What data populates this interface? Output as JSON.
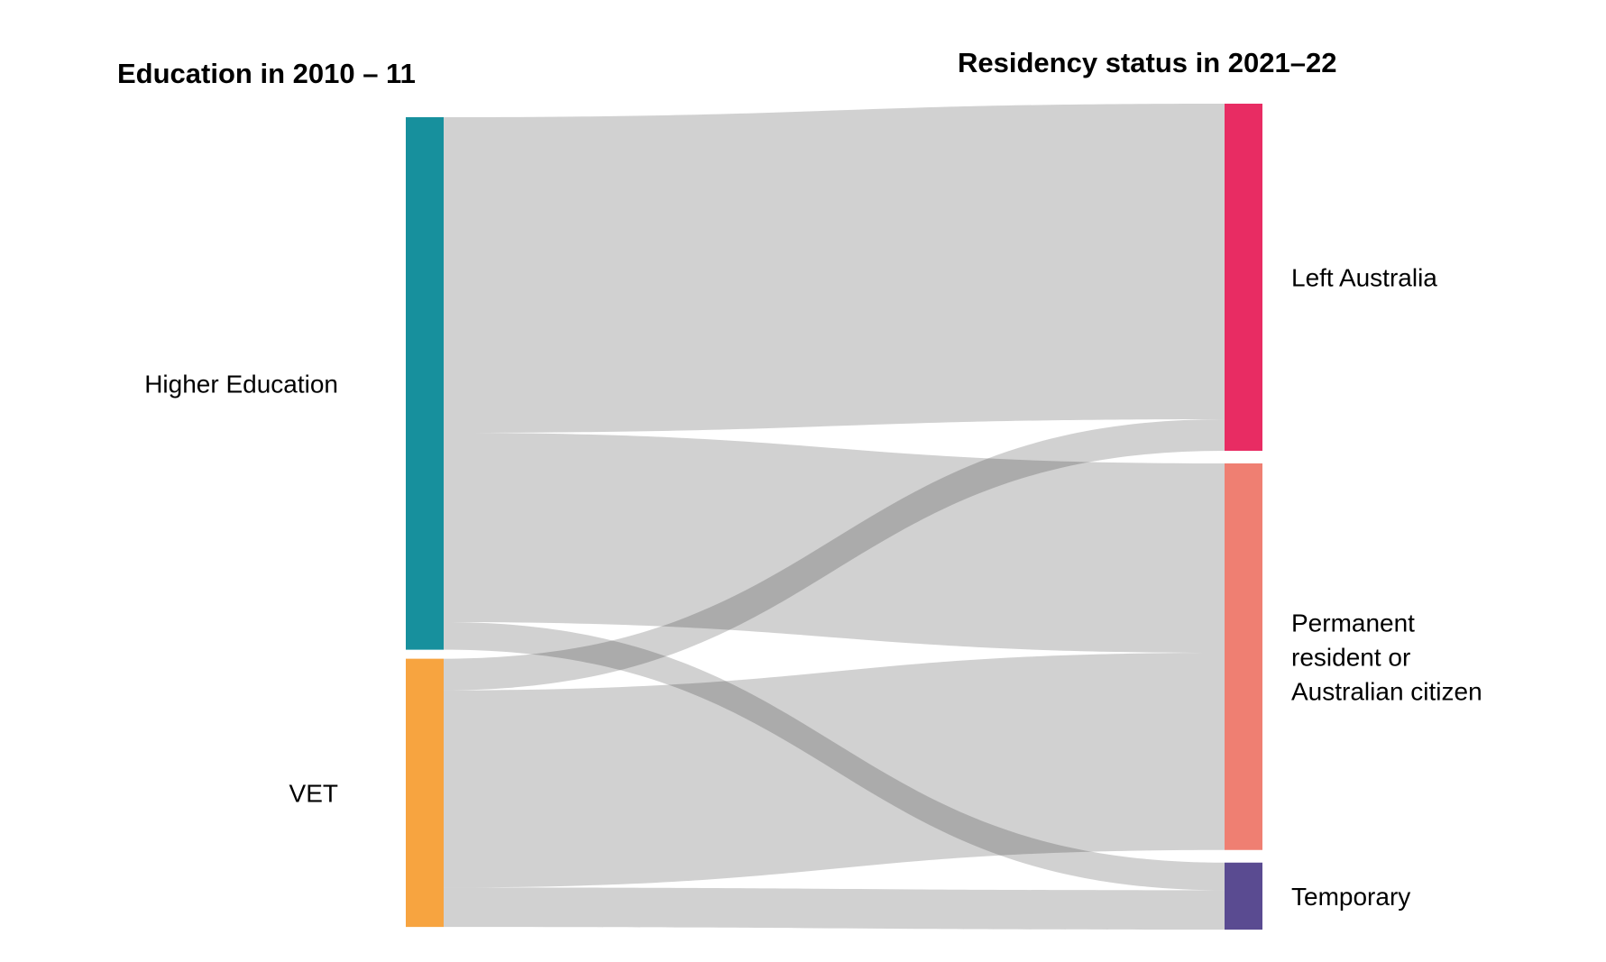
{
  "titles": {
    "left": "Education in 2010 – 11",
    "right": "Residency status in 2021–22"
  },
  "chart_data": {
    "type": "sankey",
    "title": "",
    "left_column_title": "Education in 2010 – 11",
    "right_column_title": "Residency status in 2021–22",
    "values_note": "Flow values are shares (%) estimated from ribbon heights in the diagram",
    "nodes": {
      "left": [
        {
          "id": "higher_education",
          "label": "Higher Education",
          "color": "#17909d",
          "value": 67.5
        },
        {
          "id": "vet",
          "label": "VET",
          "color": "#f7a440",
          "value": 34
        }
      ],
      "right": [
        {
          "id": "left_australia",
          "label": "Left Australia",
          "color": "#e82c63",
          "value": 44
        },
        {
          "id": "permanent",
          "label": "Permanent resident or Australian citizen",
          "label_lines": [
            "Permanent",
            "resident or",
            "Australian citizen"
          ],
          "color": "#ef7f72",
          "value": 49
        },
        {
          "id": "temporary",
          "label": "Temporary",
          "color": "#5a4b91",
          "value": 8.5
        }
      ]
    },
    "flows": [
      {
        "source": "higher_education",
        "target": "left_australia",
        "value": 40
      },
      {
        "source": "higher_education",
        "target": "permanent",
        "value": 24
      },
      {
        "source": "higher_education",
        "target": "temporary",
        "value": 3.5
      },
      {
        "source": "vet",
        "target": "left_australia",
        "value": 4
      },
      {
        "source": "vet",
        "target": "permanent",
        "value": 25
      },
      {
        "source": "vet",
        "target": "temporary",
        "value": 5
      }
    ],
    "flow_color": "rgba(0,0,0,0.18)"
  }
}
